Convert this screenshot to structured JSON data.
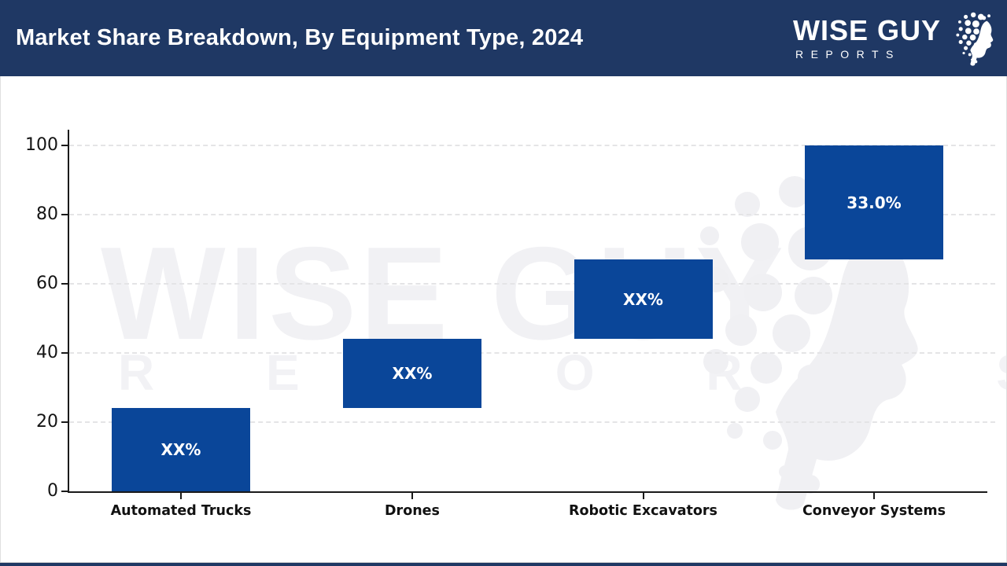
{
  "header": {
    "title": "Market Share Breakdown, By Equipment Type, 2024",
    "logo": {
      "line1": "WISE GUY",
      "line2": "REPORTS"
    }
  },
  "watermark": {
    "line1": "WISE GUY",
    "line2": "R E P O R T S"
  },
  "colors": {
    "header_bg": "#1f3864",
    "footer_bg": "#1f3864",
    "bar": "#0a4699",
    "bar_label": "#ffffff",
    "grid": "#e4e4e6",
    "axis": "#1a1a1a",
    "watermark": "#f1f1f4"
  },
  "chart_data": {
    "type": "bar",
    "subtype": "waterfall",
    "title": "Market Share Breakdown, By Equipment Type, 2024",
    "categories": [
      "Automated Trucks",
      "Drones",
      "Robotic Excavators",
      "Conveyor Systems"
    ],
    "segments": [
      {
        "category": "Automated Trucks",
        "start": 0,
        "end": 24,
        "label": "XX%"
      },
      {
        "category": "Drones",
        "start": 24,
        "end": 44,
        "label": "XX%"
      },
      {
        "category": "Robotic Excavators",
        "start": 44,
        "end": 67,
        "label": "XX%"
      },
      {
        "category": "Conveyor Systems",
        "start": 67,
        "end": 100,
        "label": "33.0%"
      }
    ],
    "ylim": [
      0,
      100
    ],
    "yticks": [
      0,
      20,
      40,
      60,
      80,
      100
    ],
    "xlabel": "",
    "ylabel": "",
    "grid": "horizontal-dashed",
    "legend": "none",
    "bar_color": "#0a4699",
    "bar_label_color": "#ffffff"
  }
}
